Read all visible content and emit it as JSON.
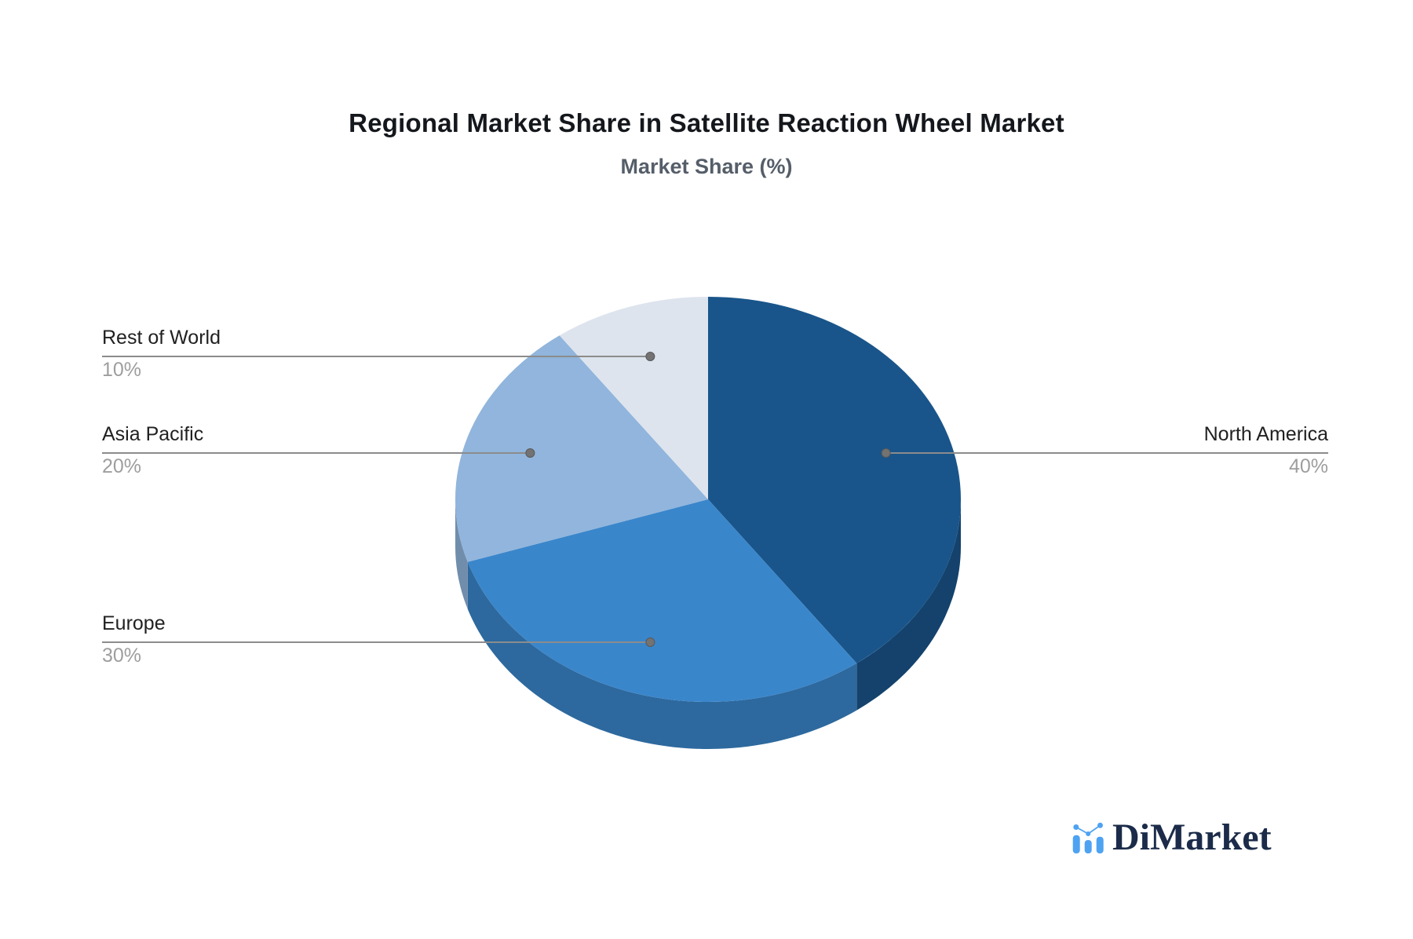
{
  "title": "Regional Market Share in Satellite Reaction Wheel Market",
  "subtitle": "Market Share (%)",
  "logo": {
    "text": "DiMarket",
    "icon": "bar-chart-sparkline-icon",
    "icon_color": "#4EA2F2",
    "text_color": "#1B2B49"
  },
  "chart_data": {
    "type": "pie",
    "style": "3d",
    "title": "Regional Market Share in Satellite Reaction Wheel Market",
    "subtitle": "Market Share (%)",
    "unit": "%",
    "start_angle_deg": 0,
    "direction": "clockwise",
    "legend": "none",
    "slices": [
      {
        "label": "North America",
        "value": 40,
        "display": "40%",
        "color": "#19558A",
        "side": "right"
      },
      {
        "label": "Europe",
        "value": 30,
        "display": "30%",
        "color": "#3A86CB",
        "side": "left"
      },
      {
        "label": "Asia Pacific",
        "value": 20,
        "display": "20%",
        "color": "#91B5DC",
        "side": "left"
      },
      {
        "label": "Rest of World",
        "value": 10,
        "display": "10%",
        "color": "#DDE4EE",
        "side": "left"
      }
    ],
    "leader_line_color": "#8C8C8C",
    "dot_color": "#737373",
    "label_color": "#212121",
    "pct_color": "#9E9E9E"
  }
}
